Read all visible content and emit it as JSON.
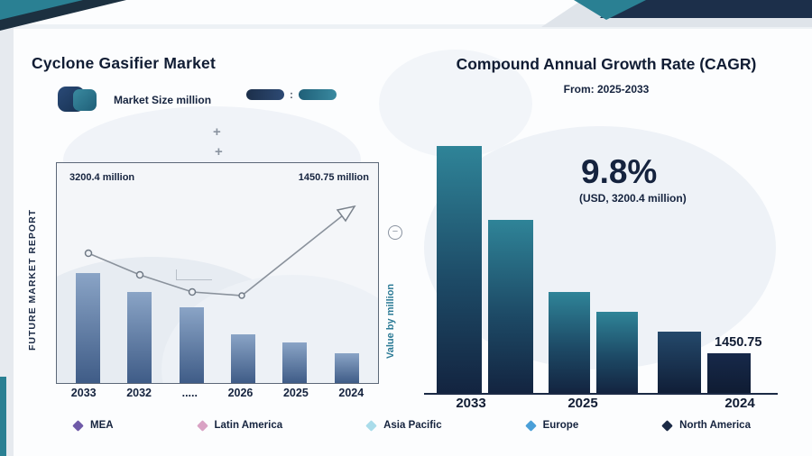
{
  "palette": {
    "navy": "#1b2a45",
    "teal": "#2a8093",
    "bar_blue_top": "#8aa4c6",
    "bar_blue_bottom": "#3f5c87",
    "bar_teal_top": "#2f8498",
    "bar_navy_bottom": "#132440"
  },
  "branding": {
    "watermark_vertical": "FUTURE MARKET REPORT"
  },
  "icons": {
    "plus": "+",
    "minus": "−",
    "colon": ":"
  },
  "chart_data": [
    {
      "type": "bar",
      "title": "Cyclone Gasifier Market",
      "legend": [
        "Market Size million"
      ],
      "legend_position": "above-chart",
      "categories": [
        "2033",
        "2032",
        ".....",
        "2026",
        "2025",
        "2024"
      ],
      "values": [
        3200.4,
        2914.5,
        null,
        1749.3,
        1592.9,
        1450.75
      ],
      "values_note": "only endpoints labeled on chart (3200.4 and 1450.75 million); intermediate values interpolated at 9.8% CAGR",
      "bar_heights_pct": [
        100,
        83,
        69,
        44,
        37,
        27
      ],
      "annotations": [
        {
          "text": "3200.4 million",
          "position": "top-left"
        },
        {
          "text": "1450.75 million",
          "position": "top-right"
        }
      ],
      "overlay_trend": "grey line with circle markers declining from 2033 to 2026, then arrow rising toward top-right",
      "xlabel": "",
      "ylabel": "",
      "grid": false
    },
    {
      "type": "bar",
      "title": "Compound Annual Growth Rate (CAGR)",
      "subtitle": "From: 2025-2033",
      "cagr": "9.8%",
      "cagr_note": "(USD, 3200.4 million)",
      "ylabel": "Value by million",
      "categories": [
        "2033",
        "2025",
        "2024"
      ],
      "series": [
        {
          "name": "bar-1",
          "bar_heights_pct": [
            100,
            41,
            25
          ],
          "labeled_values": [
            3200.4,
            null,
            1450.75
          ]
        },
        {
          "name": "bar-2",
          "bar_heights_pct": [
            70,
            33,
            16
          ],
          "labeled_values": [
            null,
            null,
            null
          ]
        }
      ],
      "data_labels": [
        {
          "text": "1450.75",
          "category": "2024"
        }
      ],
      "grid": false
    }
  ],
  "legend": {
    "items": [
      {
        "label": "MEA",
        "color": "#6f5aa8"
      },
      {
        "label": "Latin America",
        "color": "#d9a2c4"
      },
      {
        "label": "Asia Pacific",
        "color": "#a9dcea"
      },
      {
        "label": "Europe",
        "color": "#4a9fd8"
      },
      {
        "label": "North America",
        "color": "#1b2a45"
      }
    ]
  }
}
